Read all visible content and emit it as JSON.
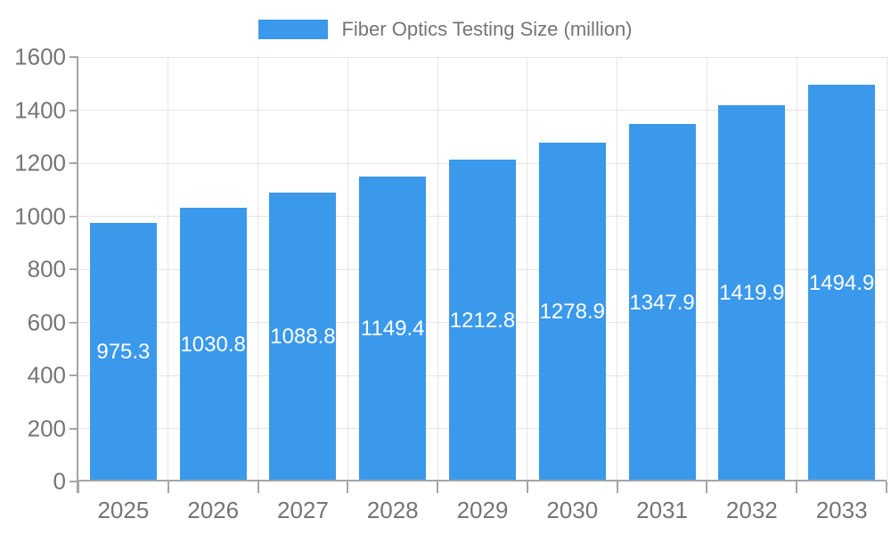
{
  "colors": {
    "bar": "#3B99EC",
    "grid": "#E5E5E5",
    "axis": "#A5A5A5",
    "tick_text": "#757575",
    "value_text": "#FFFFFF",
    "background": "#FFFFFF"
  },
  "chart_data": {
    "type": "bar",
    "title": "Fiber Optics Testing Size (million)",
    "categories": [
      "2025",
      "2026",
      "2027",
      "2028",
      "2029",
      "2030",
      "2031",
      "2032",
      "2033"
    ],
    "series": [
      {
        "name": "Fiber Optics Testing Size (million)",
        "values": [
          975.3,
          1030.8,
          1088.8,
          1149.4,
          1212.8,
          1278.9,
          1347.9,
          1419.9,
          1494.9
        ]
      }
    ],
    "value_labels": [
      "975.3",
      "1030.8",
      "1088.8",
      "1149.4",
      "1212.8",
      "1278.9",
      "1347.9",
      "1419.9",
      "1494.9"
    ],
    "xlabel": "",
    "ylabel": "",
    "ylim": [
      0,
      1600
    ],
    "ytick_step": 200,
    "yticks": [
      0,
      200,
      400,
      600,
      800,
      1000,
      1200,
      1400,
      1600
    ],
    "grid": true,
    "legend_position": "top",
    "value_label_position": "middle-of-bar",
    "bar_width_fraction": 0.744
  }
}
